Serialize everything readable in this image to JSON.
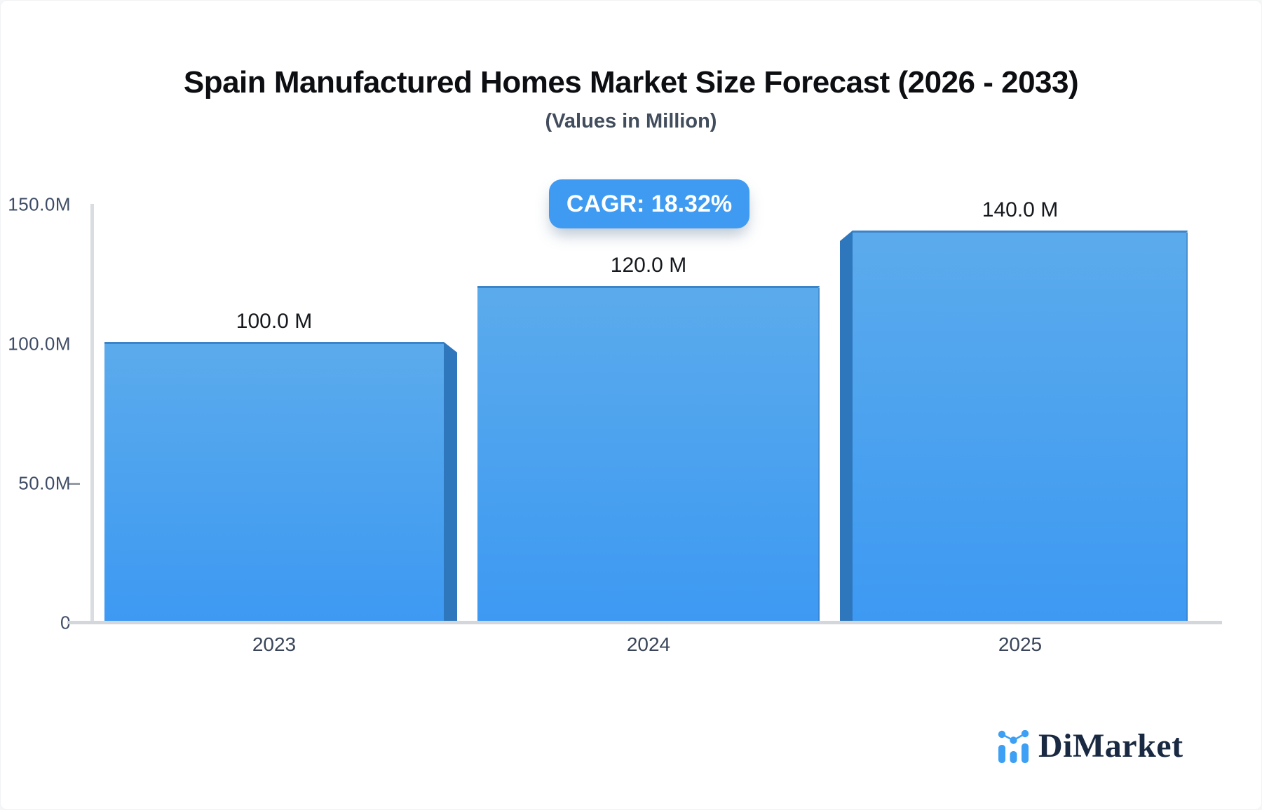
{
  "header": {
    "title": "Spain Manufactured Homes Market Size Forecast (2026 - 2033)",
    "subtitle": "(Values in Million)",
    "cagr_label": "CAGR: 18.32%"
  },
  "chart_data": {
    "type": "bar",
    "title": "Spain Manufactured Homes Market Size Forecast (2026 - 2033)",
    "subtitle": "(Values in Million)",
    "unit": "Million",
    "cagr": "18.32%",
    "categories": [
      "2023",
      "2024",
      "2025"
    ],
    "values": [
      100.0,
      120.0,
      140.0
    ],
    "value_labels": [
      "100.0 M",
      "120.0 M",
      "140.0 M"
    ],
    "ylim": [
      0,
      150
    ],
    "ytick_labels": [
      "150.0M",
      "100.0M",
      "50.0M",
      "0"
    ],
    "ytick_values": [
      150,
      100,
      50,
      0
    ],
    "grid": false,
    "legend": "none",
    "bar_color_top": "#5babec",
    "bar_color_bottom": "#3d99f2",
    "bar_side_color": "#2e77bd"
  },
  "branding": {
    "logo_text": "DiMarket",
    "logo_icon": "mini-bar-chart-icon",
    "text_color": "#1a2942",
    "icon_color": "#3da0f4"
  },
  "colors": {
    "badge_bg": "#3f9bf1",
    "badge_text": "#ffffff",
    "axis_line": "#d6d9de",
    "ytick_label": "#3e4c66",
    "xtick_label": "#3a4559",
    "background": "#ffffff"
  }
}
